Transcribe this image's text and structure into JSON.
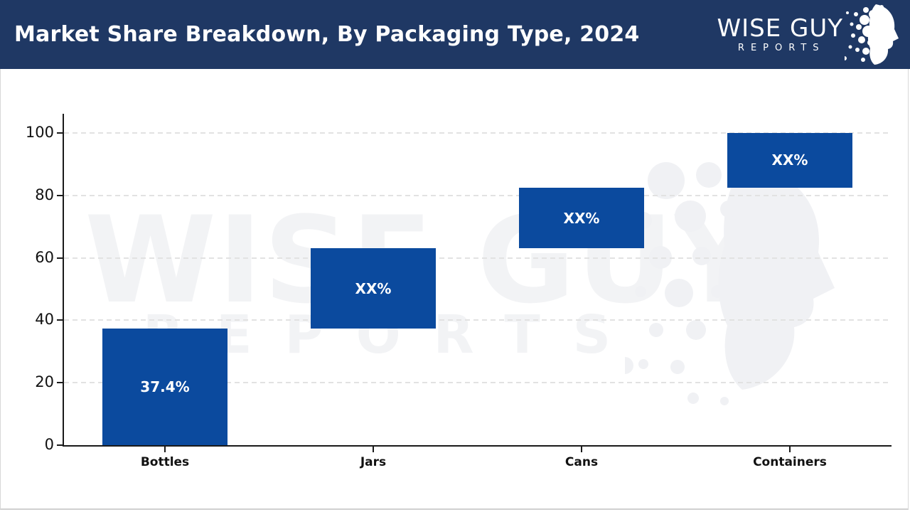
{
  "header": {
    "title": "Market Share Breakdown, By Packaging Type, 2024",
    "bg_color": "#1f3864",
    "logo": {
      "line1": "WISE GUY",
      "line2": "REPORTS"
    }
  },
  "watermark": {
    "line1": "WISE GUY",
    "line2": "REPORTS"
  },
  "chart_data": {
    "type": "bar",
    "subtype": "waterfall",
    "title": "Market Share Breakdown, By Packaging Type, 2024",
    "categories": [
      "Bottles",
      "Jars",
      "Cans",
      "Containers"
    ],
    "segments": [
      {
        "category": "Bottles",
        "start": 0,
        "end": 37.4,
        "value": 37.4,
        "label": "37.4%"
      },
      {
        "category": "Jars",
        "start": 37.4,
        "end": 63,
        "value": 25.6,
        "label": "XX%"
      },
      {
        "category": "Cans",
        "start": 63,
        "end": 82.5,
        "value": 19.5,
        "label": "XX%"
      },
      {
        "category": "Containers",
        "start": 82.5,
        "end": 100,
        "value": 17.5,
        "label": "XX%"
      }
    ],
    "xlabel": "",
    "ylabel": "",
    "ylim": [
      0,
      100
    ],
    "yticks": [
      0,
      20,
      40,
      60,
      80,
      100
    ],
    "grid": "horizontal-dashed",
    "legend": "none",
    "bar_color": "#0b4a9e",
    "bar_label_color": "#ffffff",
    "axis_color": "#1a1a1a",
    "gridline_color": "#e2e2e2"
  }
}
